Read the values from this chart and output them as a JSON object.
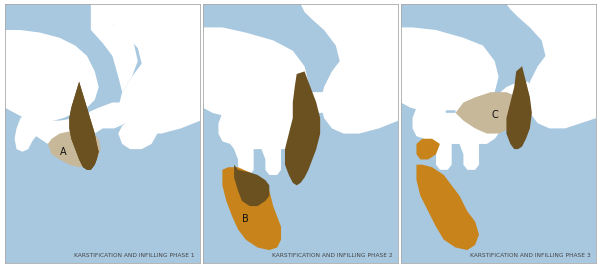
{
  "bg_color": "#ffffff",
  "panel_bg": "#a8c8e0",
  "white_rock": "#ffffff",
  "dark_brown": "#6b5020",
  "light_orange": "#c8841a",
  "beige": "#c8b89a",
  "text_color": "#444444",
  "labels": [
    "A",
    "B",
    "C"
  ],
  "captions": [
    "KARSTIFICATION AND INFILLING PHASE 1",
    "KARSTIFICATION AND INFILLING PHASE 2",
    "KARSTIFICATION AND INFILLING PHASE 3"
  ],
  "caption_fontsize": 4.2,
  "label_fontsize": 7
}
